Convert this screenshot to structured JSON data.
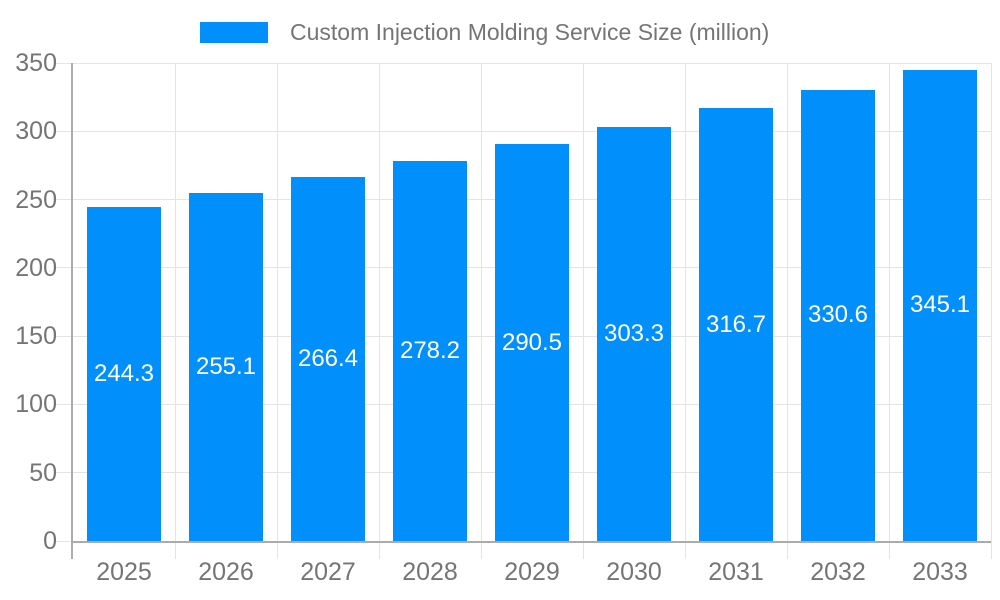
{
  "chart_data": {
    "type": "bar",
    "title": "Custom Injection Molding Service Size (million)",
    "categories": [
      "2025",
      "2026",
      "2027",
      "2028",
      "2029",
      "2030",
      "2031",
      "2032",
      "2033"
    ],
    "values": [
      244.3,
      255.1,
      266.4,
      278.2,
      290.5,
      303.3,
      316.7,
      330.6,
      345.1
    ],
    "xlabel": "",
    "ylabel": "",
    "ylim": [
      0,
      350
    ],
    "yticks": [
      0,
      50,
      100,
      150,
      200,
      250,
      300,
      350
    ],
    "legend_position": "top",
    "grid": true,
    "value_label_position": "inside-center"
  },
  "legend": {
    "label": "Custom Injection Molding Service Size (million)"
  },
  "colors": {
    "bar": "#008FFB",
    "background": "#ffffff",
    "axis_label_text": "#757575",
    "legend_text": "#757575",
    "grid_line": "#e4e4e4",
    "axis_line": "#ababab",
    "value_label_text": "#ffffff"
  }
}
